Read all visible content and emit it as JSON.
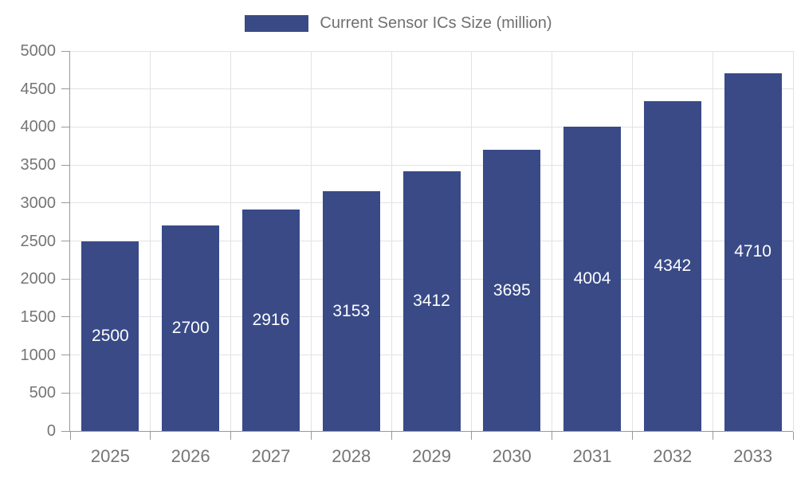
{
  "legend": {
    "label": "Current Sensor ICs Size (million)"
  },
  "chart_data": {
    "type": "bar",
    "title": "",
    "categories": [
      "2025",
      "2026",
      "2027",
      "2028",
      "2029",
      "2030",
      "2031",
      "2032",
      "2033"
    ],
    "series": [
      {
        "name": "Current Sensor ICs Size (million)",
        "values": [
          2500,
          2700,
          2916,
          3153,
          3412,
          3695,
          4004,
          4342,
          4710
        ]
      }
    ],
    "value_labels": [
      "2500",
      "2700",
      "2916",
      "3153",
      "3412",
      "3695",
      "4004",
      "4342",
      "4710"
    ],
    "xlabel": "",
    "ylabel": "",
    "ylim": [
      0,
      5000
    ],
    "ytick_step": 500,
    "ytick_labels": [
      "0",
      "500",
      "1000",
      "1500",
      "2000",
      "2500",
      "3000",
      "3500",
      "4000",
      "4500",
      "5000"
    ],
    "grid": true,
    "legend_position": "top-center",
    "colors": {
      "bar": "#394A87",
      "grid_line": "#E2E2E7",
      "axis_line": "#999999",
      "tick_label": "#757575",
      "value_label": "#FFFFFF",
      "legend_text": "#707070",
      "background": "#FFFFFF"
    }
  }
}
